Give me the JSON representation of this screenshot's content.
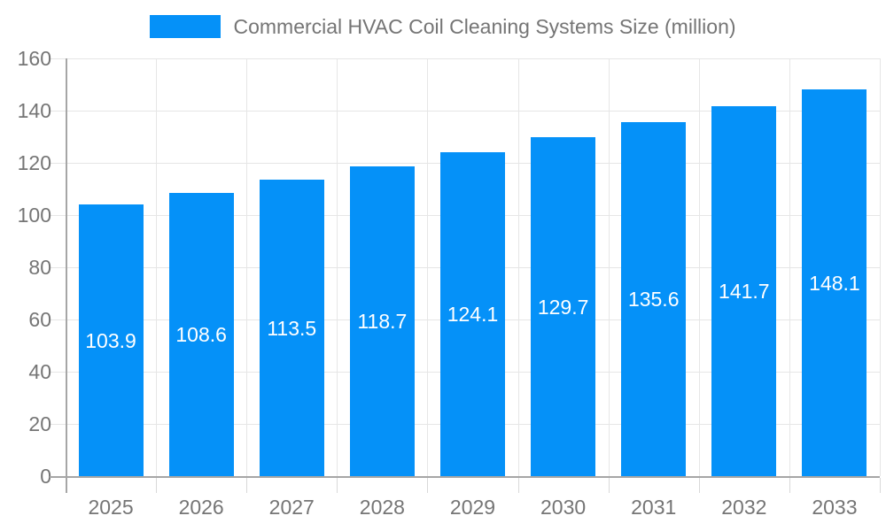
{
  "chart_data": {
    "type": "bar",
    "title": "Commercial HVAC Coil Cleaning Systems Size (million)",
    "categories": [
      "2025",
      "2026",
      "2027",
      "2028",
      "2029",
      "2030",
      "2031",
      "2032",
      "2033"
    ],
    "values": [
      103.9,
      108.6,
      113.5,
      118.7,
      124.1,
      129.7,
      135.6,
      141.7,
      148.1
    ],
    "series": [
      {
        "name": "Commercial HVAC Coil Cleaning Systems Size (million)",
        "values": [
          103.9,
          108.6,
          113.5,
          118.7,
          124.1,
          129.7,
          135.6,
          141.7,
          148.1
        ]
      }
    ],
    "xlabel": "",
    "ylabel": "",
    "ylim": [
      0,
      160
    ],
    "yticks": [
      0,
      20,
      40,
      60,
      80,
      100,
      120,
      140,
      160
    ],
    "legend_position": "top-center",
    "grid": true,
    "value_label_position": "inside-center"
  },
  "colors": {
    "bar": "#0591f8",
    "text": "#757575",
    "grid": "#e6e6e6",
    "axis": "#a6a6a6",
    "tick": "#d9d9d9",
    "value_label": "#ffffff",
    "background": "#ffffff"
  }
}
